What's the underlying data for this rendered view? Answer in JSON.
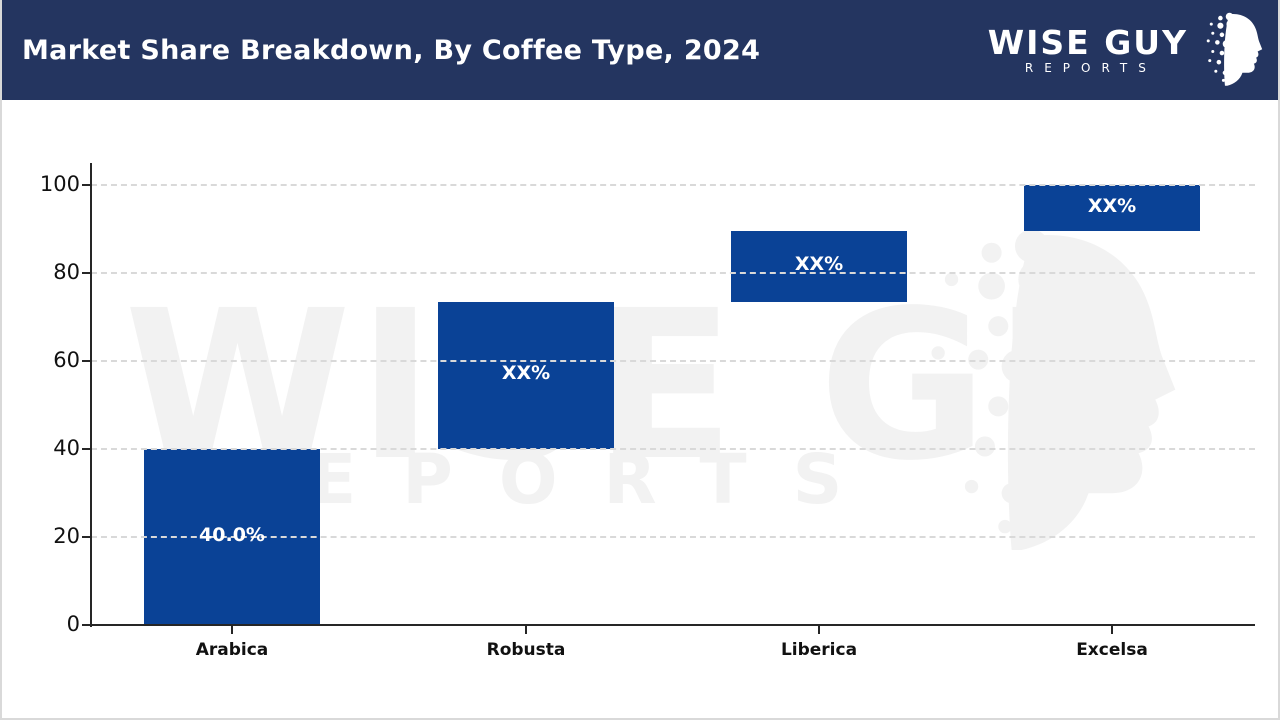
{
  "header": {
    "title": "Market Share Breakdown, By Coffee Type, 2024"
  },
  "brand": {
    "line1": "WISE GUY",
    "line2": "REPORTS"
  },
  "watermark": {
    "line1": "WISE GU",
    "line2": "REPORTS"
  },
  "chart_data": {
    "type": "bar",
    "style": "waterfall",
    "title": "Market Share Breakdown, By Coffee Type, 2024",
    "categories": [
      "Arabica",
      "Robusta",
      "Liberica",
      "Excelsa"
    ],
    "bars": [
      {
        "category": "Arabica",
        "base": 0,
        "value": 40.0,
        "label": "40.0%"
      },
      {
        "category": "Robusta",
        "base": 40.0,
        "value": 33.5,
        "label": "XX%"
      },
      {
        "category": "Liberica",
        "base": 73.5,
        "value": 16.0,
        "label": "XX%"
      },
      {
        "category": "Excelsa",
        "base": 89.5,
        "value": 10.5,
        "label": "XX%"
      }
    ],
    "xlabel": "",
    "ylabel": "",
    "yticks": [
      0,
      20,
      40,
      60,
      80,
      100
    ],
    "ylim": [
      0,
      105
    ],
    "grid": "dashed-horizontal-on-top",
    "legend": null,
    "colors": {
      "bar": "#0a4296",
      "bar_label": "#ffffff",
      "grid": "#d9d9d9",
      "axis": "#262626",
      "tick_label": "#111111",
      "header_bg": "#243560",
      "header_text": "#ffffff",
      "watermark": "#f2f2f2"
    }
  }
}
